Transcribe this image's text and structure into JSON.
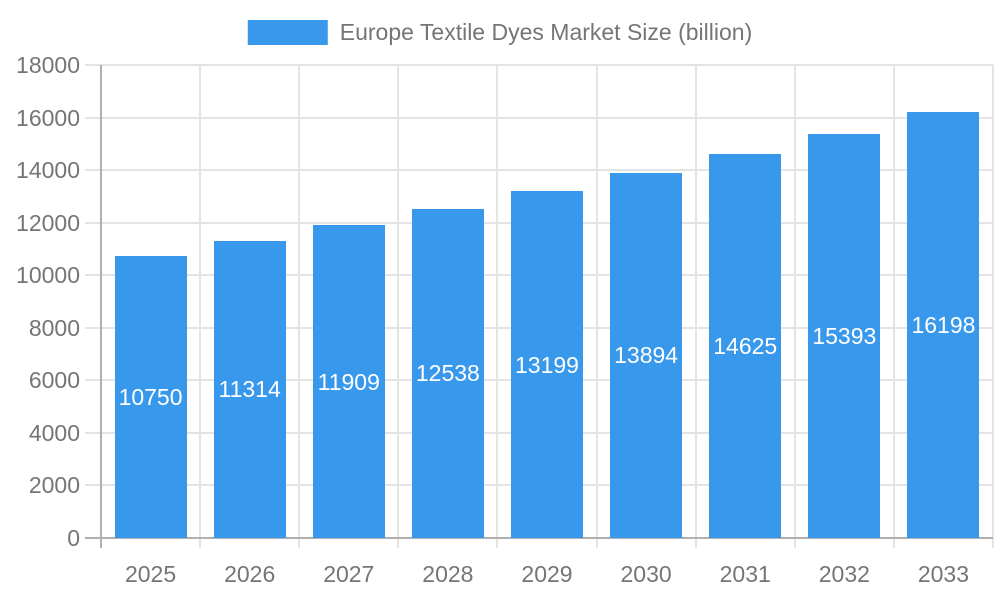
{
  "chart_data": {
    "type": "bar",
    "title": "Europe Textile Dyes Market Size (billion)",
    "series_name": "Europe Textile Dyes Market Size (billion)",
    "categories": [
      "2025",
      "2026",
      "2027",
      "2028",
      "2029",
      "2030",
      "2031",
      "2032",
      "2033"
    ],
    "values": [
      10750,
      11314,
      11909,
      12538,
      13199,
      13894,
      14625,
      15393,
      16198
    ],
    "xlabel": "",
    "ylabel": "",
    "ylim": [
      0,
      18000
    ],
    "yticks": [
      0,
      2000,
      4000,
      6000,
      8000,
      10000,
      12000,
      14000,
      16000,
      18000
    ],
    "grid": true,
    "data_labels": true,
    "legend_position": "top"
  },
  "colors": {
    "bar": "#3898ec",
    "axis": "#b0b0b0",
    "gridline": "#e4e4e4",
    "text": "#757575",
    "bar_label": "#ffffff",
    "background": "#ffffff"
  }
}
